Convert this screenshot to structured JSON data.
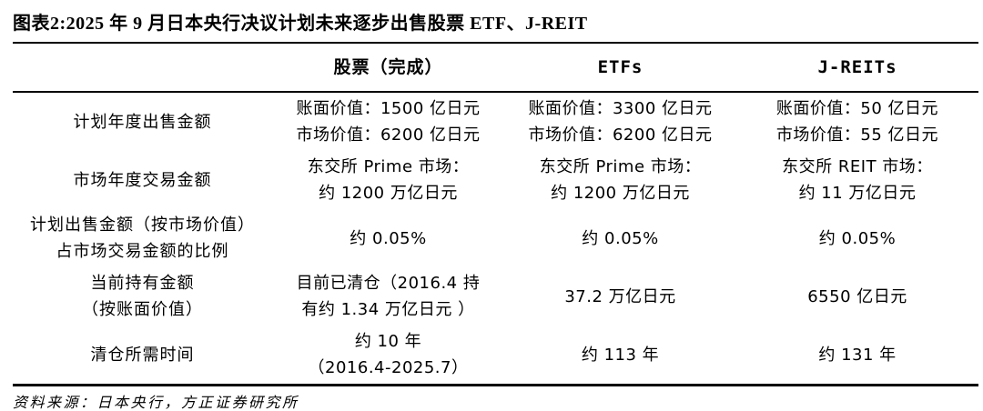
{
  "title": "图表2:2025 年 9 月日本央行决议计划未来逐步出售股票 ETF、J-REIT",
  "source_note": "资料来源：日本央行，方正证券研究所",
  "colors": {
    "text": "#000000",
    "background": "#ffffff",
    "rule": "#000000"
  },
  "table": {
    "header": {
      "col_label": "",
      "col_stock": "股票（完成）",
      "col_etf": "ETFs",
      "col_jreit": "J-REITs"
    },
    "rows": [
      {
        "label_lines": [
          "计划年度出售金额"
        ],
        "stock_lines": [
          "账面价值：1500 亿日元",
          "市场价值：6200 亿日元"
        ],
        "etf_lines": [
          "账面价值：3300 亿日元",
          "市场价值：6200 亿日元"
        ],
        "jreit_lines": [
          "账面价值：50 亿日元",
          "市场价值：55 亿日元"
        ]
      },
      {
        "label_lines": [
          "市场年度交易金额"
        ],
        "stock_lines": [
          "东交所 Prime 市场：",
          "约 1200 万亿日元"
        ],
        "etf_lines": [
          "东交所 Prime 市场：",
          "约 1200 万亿日元"
        ],
        "jreit_lines": [
          "东交所 REIT 市场：",
          "约 11 万亿日元"
        ]
      },
      {
        "label_lines": [
          "计划出售金额（按市场价值）",
          "占市场交易金额的比例"
        ],
        "stock_lines": [
          "约 0.05%"
        ],
        "etf_lines": [
          "约 0.05%"
        ],
        "jreit_lines": [
          "约 0.05%"
        ]
      },
      {
        "label_lines": [
          "当前持有金额",
          "（按账面价值）"
        ],
        "stock_lines": [
          "目前已清仓（2016.4 持",
          "有约 1.34 万亿日元 ）"
        ],
        "etf_lines": [
          "37.2 万亿日元"
        ],
        "jreit_lines": [
          "6550 亿日元"
        ]
      },
      {
        "label_lines": [
          "清仓所需时间"
        ],
        "stock_lines": [
          "约 10 年",
          "（2016.4-2025.7）"
        ],
        "etf_lines": [
          "约 113 年"
        ],
        "jreit_lines": [
          "约 131 年"
        ]
      }
    ]
  }
}
